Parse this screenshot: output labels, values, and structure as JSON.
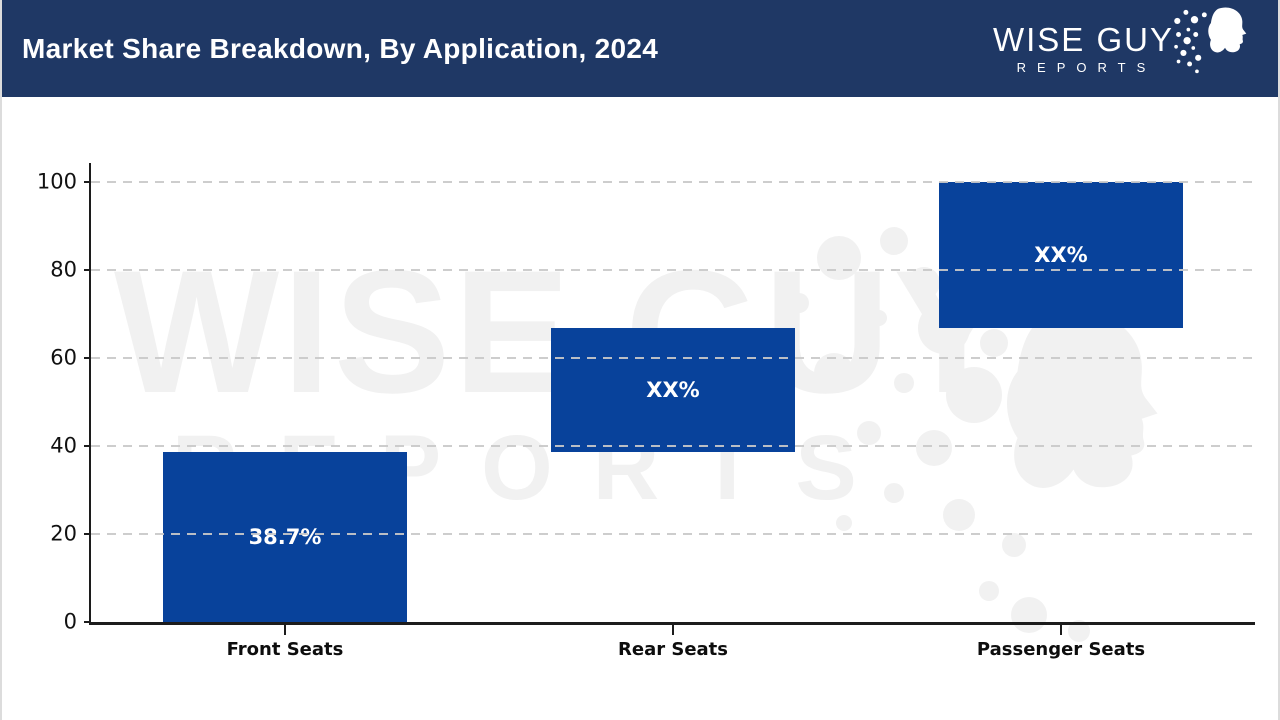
{
  "header": {
    "title": "Market Share Breakdown, By Application, 2024",
    "bg_color": "#1f3865",
    "logo": {
      "line1": "WISE GUY",
      "line2": "REPORTS"
    }
  },
  "watermark": {
    "line1": "WISE GUY",
    "line2": "REPORTS",
    "color": "#f1f1f1"
  },
  "chart_data": {
    "type": "bar",
    "subtype": "waterfall",
    "title": "Market Share Breakdown, By Application, 2024",
    "categories": [
      "Front Seats",
      "Rear Seats",
      "Passenger Seats"
    ],
    "segments": [
      {
        "category": "Front Seats",
        "start": 0,
        "end": 38.7,
        "label": "38.7%"
      },
      {
        "category": "Rear Seats",
        "start": 38.7,
        "end": 66.8,
        "label": "XX%"
      },
      {
        "category": "Passenger Seats",
        "start": 66.8,
        "end": 100,
        "label": "XX%"
      }
    ],
    "values_displayed": [
      "38.7%",
      "XX%",
      "XX%"
    ],
    "xlabel": "",
    "ylabel": "",
    "ylim": [
      0,
      100
    ],
    "yticks": [
      0,
      20,
      40,
      60,
      80,
      100
    ],
    "grid": "horizontal-dashed",
    "legend": "none",
    "bar_color": "#08429b",
    "bar_label_color": "#ffffff"
  }
}
